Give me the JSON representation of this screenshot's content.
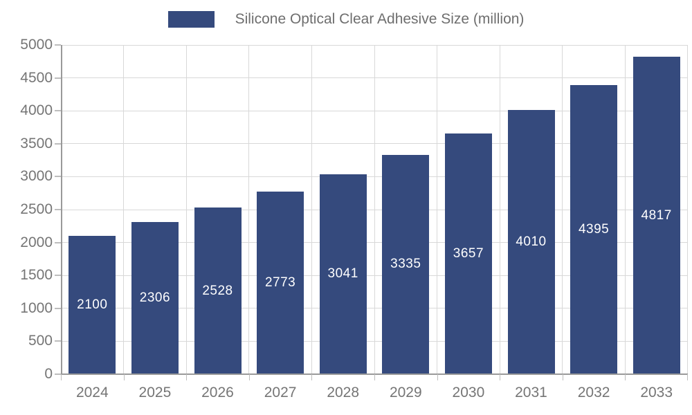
{
  "chart_data": {
    "type": "bar",
    "title": "",
    "legend_label": "Silicone Optical Clear Adhesive Size (million)",
    "legend_position": "top-center",
    "categories": [
      "2024",
      "2025",
      "2026",
      "2027",
      "2028",
      "2029",
      "2030",
      "2031",
      "2032",
      "2033"
    ],
    "values": [
      2100,
      2306,
      2528,
      2773,
      3041,
      3335,
      3657,
      4010,
      4395,
      4817
    ],
    "xlabel": "",
    "ylabel": "",
    "ylim": [
      0,
      5000
    ],
    "yticks": [
      0,
      500,
      1000,
      1500,
      2000,
      2500,
      3000,
      3500,
      4000,
      4500,
      5000
    ],
    "grid": true,
    "value_labels": "inside-center"
  },
  "colors": {
    "bar": "#354a7d",
    "grid": "#d8d8d8",
    "axis_line": "#999999",
    "tick_mark": "#bdbdbd",
    "axis_label": "#757575",
    "legend_label": "#6e6e6e",
    "value_label": "#ffffff",
    "background": "#ffffff"
  }
}
